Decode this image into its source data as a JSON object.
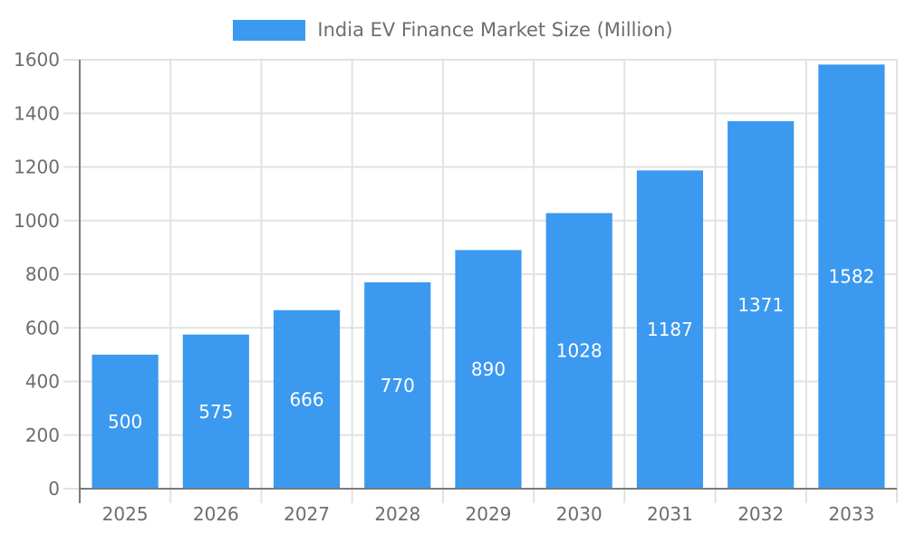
{
  "chart_data": {
    "type": "bar",
    "title": "India EV Finance Market Size (Million)",
    "categories": [
      "2025",
      "2026",
      "2027",
      "2028",
      "2029",
      "2030",
      "2031",
      "2032",
      "2033"
    ],
    "values": [
      500,
      575,
      666,
      770,
      890,
      1028,
      1187,
      1371,
      1582
    ],
    "value_labels_visible": true,
    "xlabel": "",
    "ylabel": "",
    "ylim": [
      0,
      1600
    ],
    "ytick_step": 200,
    "ytick_labels": [
      "0",
      "200",
      "400",
      "600",
      "800",
      "1000",
      "1200",
      "1400",
      "1600"
    ],
    "grid": true,
    "legend_position": "top-center",
    "colors": {
      "bar": "#3B99EF",
      "value_label": "#ffffff",
      "axis_text": "#6d6d6d",
      "gridline": "#e2e2e2",
      "axis_line": "#7a7a7a",
      "background": "#ffffff"
    }
  }
}
